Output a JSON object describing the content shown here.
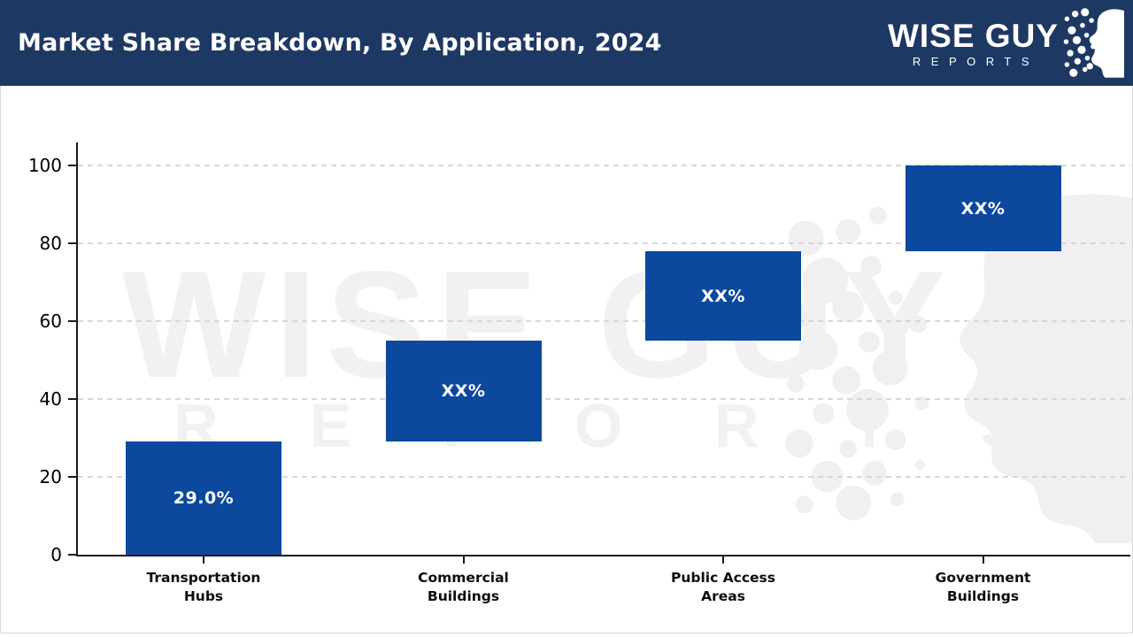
{
  "header": {
    "title": "Market Share Breakdown, By Application, 2024",
    "logo": {
      "brand": "WISE GUY",
      "sub": "REPORTS"
    }
  },
  "watermark": {
    "line1": "WISE GUY",
    "line2": "R E P O R T S"
  },
  "chart_data": {
    "type": "bar",
    "subtype": "waterfall",
    "title": "Market Share Breakdown, By Application, 2024",
    "categories": [
      "Transportation\nHubs",
      "Commercial\nBuildings",
      "Public Access\nAreas",
      "Government\nBuildings"
    ],
    "segments": [
      {
        "category": "Transportation Hubs",
        "start": 0,
        "end": 29,
        "value": 29.0,
        "label": "29.0%"
      },
      {
        "category": "Commercial Buildings",
        "start": 29,
        "end": 55,
        "value": 26.0,
        "label": "XX%"
      },
      {
        "category": "Public Access Areas",
        "start": 55,
        "end": 78,
        "value": 23.0,
        "label": "XX%"
      },
      {
        "category": "Government Buildings",
        "start": 78,
        "end": 100,
        "value": 22.0,
        "label": "XX%"
      }
    ],
    "xlabel": "",
    "ylabel": "",
    "ylim": [
      0,
      100
    ],
    "yticks": [
      0,
      20,
      40,
      60,
      80,
      100
    ],
    "grid": "dashed-horizontal",
    "legend": "none",
    "colors": {
      "bar": "#0b489e",
      "value_label": "#ffffff",
      "grid": "#d7d7d7",
      "axis": "#1a1a1a",
      "tick_label": "#000000"
    }
  },
  "colors": {
    "header_bg": "#1e3864",
    "page_bg": "#ffffff",
    "page_border": "#d6d6d6",
    "watermark": "#f1f1f3"
  }
}
